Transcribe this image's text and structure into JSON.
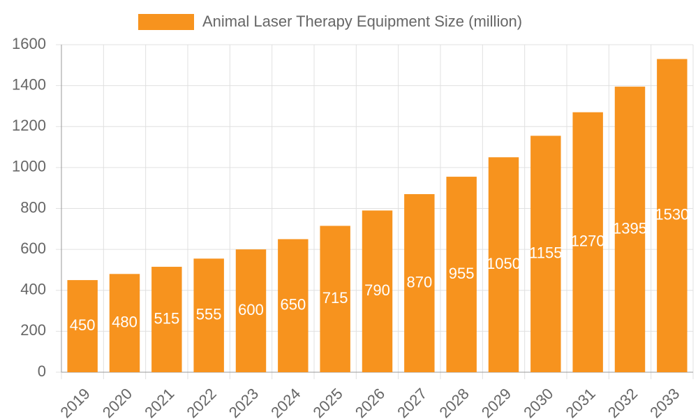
{
  "chart_data": {
    "type": "bar",
    "categories": [
      "2019",
      "2020",
      "2021",
      "2022",
      "2023",
      "2024",
      "2025",
      "2026",
      "2027",
      "2028",
      "2029",
      "2030",
      "2031",
      "2032",
      "2033"
    ],
    "series": [
      {
        "name": "Animal Laser Therapy Equipment Size (million)",
        "color": "#f7931e",
        "values": [
          450,
          480,
          515,
          555,
          600,
          650,
          715,
          790,
          870,
          955,
          1050,
          1155,
          1270,
          1395,
          1530
        ]
      }
    ],
    "ylim": [
      0,
      1600
    ],
    "yticks": [
      0,
      200,
      400,
      600,
      800,
      1000,
      1200,
      1400,
      1600
    ],
    "grid": true,
    "legend": "top",
    "data_labels": true
  }
}
